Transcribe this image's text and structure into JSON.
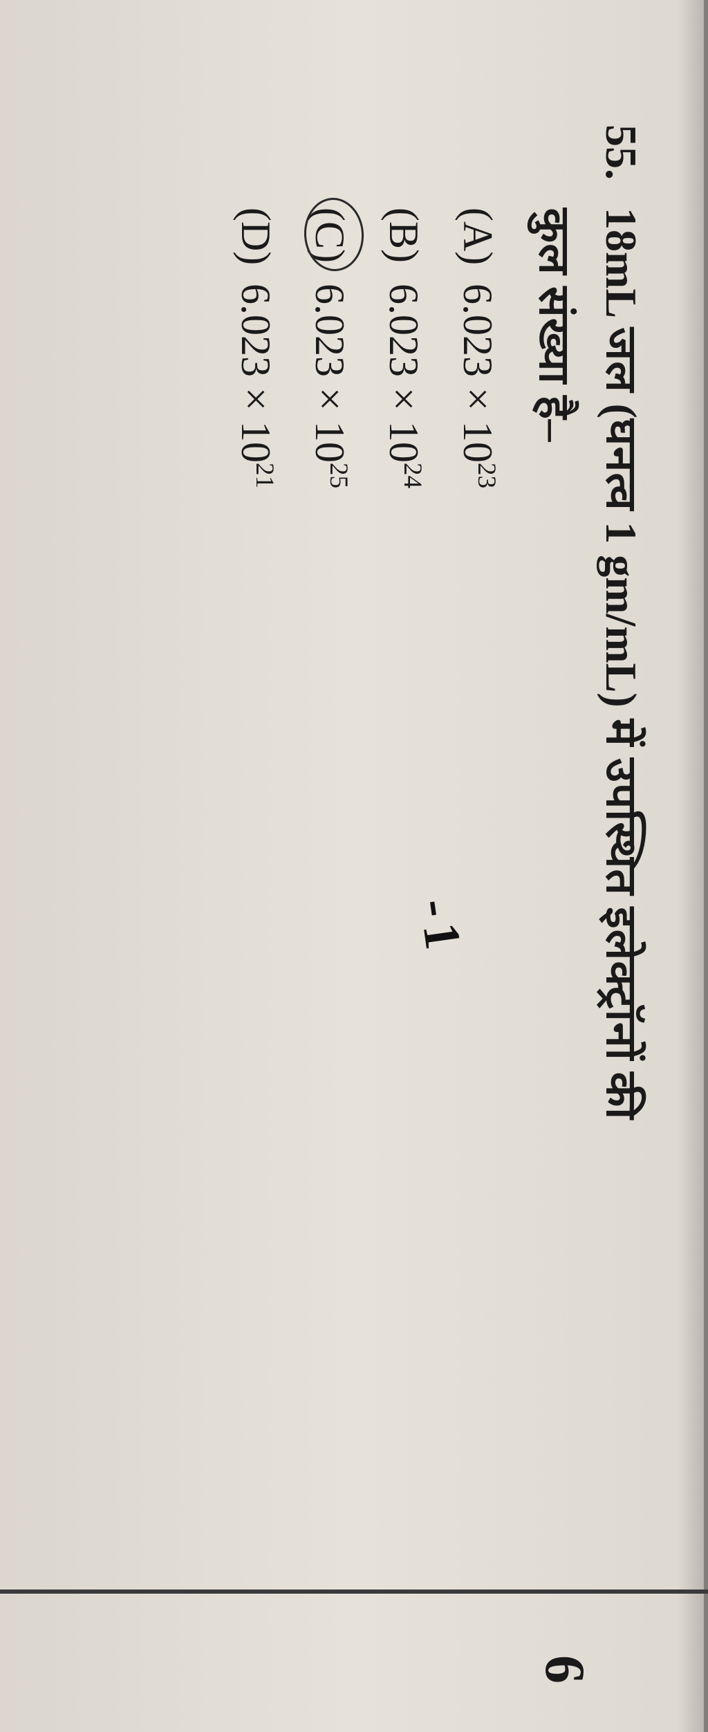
{
  "question": {
    "number": "55.",
    "stem_line1": "18mL जल (घनत्व 1 gm/mL) में उपस्थित इलेक्ट्रॉनों की",
    "stem_line2": "कुल संख्या है–",
    "options": [
      {
        "label": "(A)",
        "base": "6.023 × 10",
        "exp": "23",
        "circled": false
      },
      {
        "label": "(B)",
        "base": "6.023 × 10",
        "exp": "24",
        "circled": false
      },
      {
        "label": "(C)",
        "base": "6.023 × 10",
        "exp": "25",
        "circled": true
      },
      {
        "label": "(D)",
        "base": "6.023 × 10",
        "exp": "21",
        "circled": false
      }
    ]
  },
  "handwritten_mark": "- 1",
  "page_number": "6",
  "colors": {
    "text": "#1a1a1a",
    "background": "#e8e4de",
    "margin_line": "#3a3a3a"
  }
}
